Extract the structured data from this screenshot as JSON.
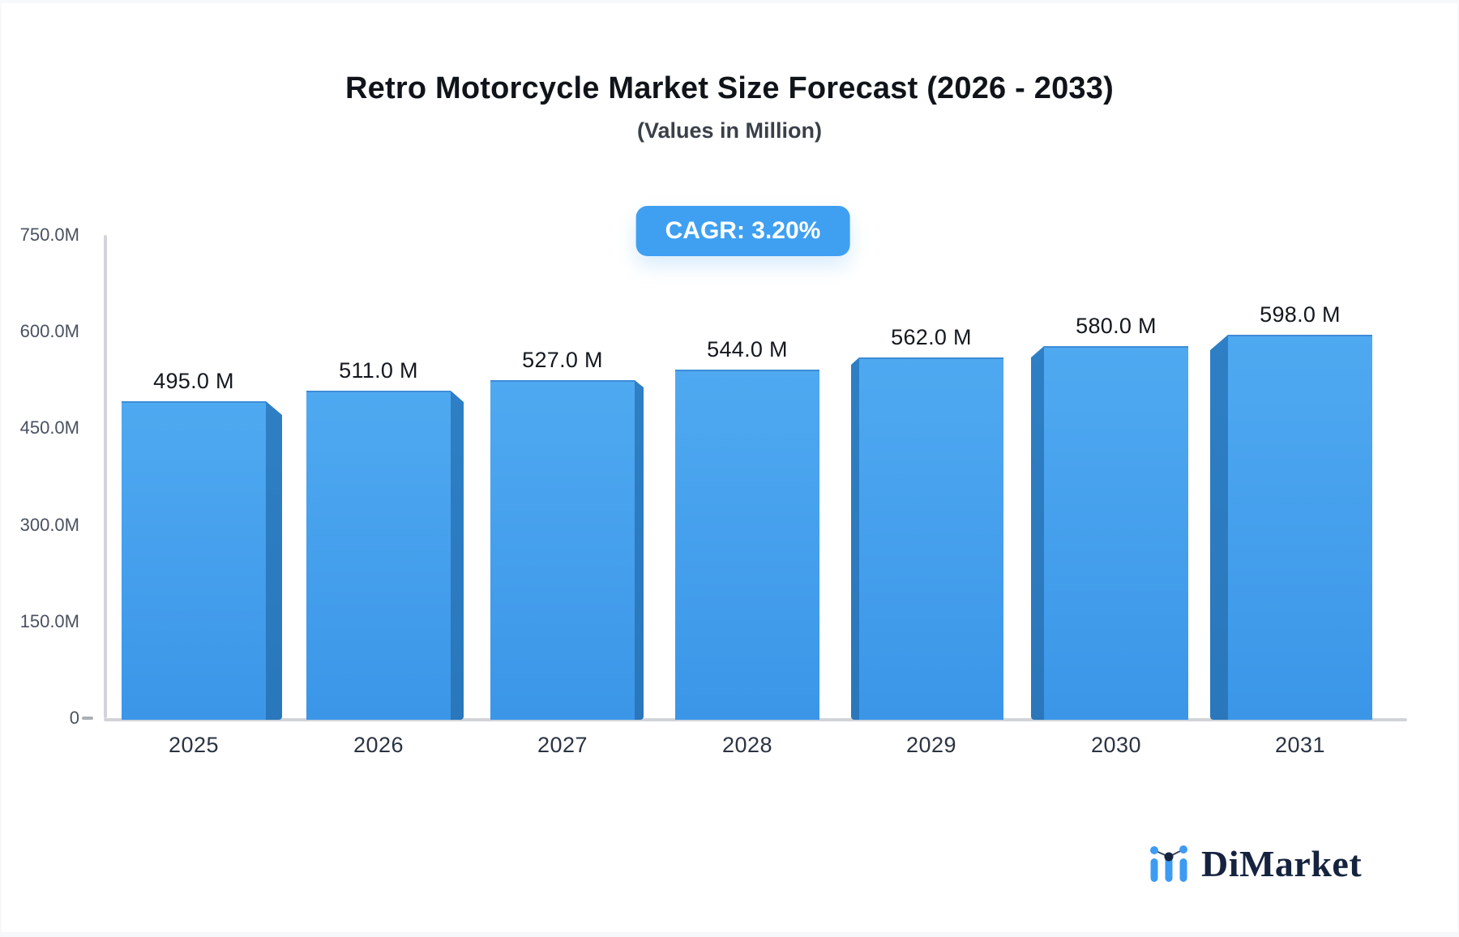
{
  "title": "Retro Motorcycle Market Size Forecast (2026 - 2033)",
  "subtitle": "(Values in Million)",
  "badge": {
    "label": "CAGR: 3.20%"
  },
  "chart_data": {
    "type": "bar",
    "title": "Retro Motorcycle Market Size Forecast (2026 - 2033)",
    "subtitle": "(Values in Million)",
    "categories": [
      "2025",
      "2026",
      "2027",
      "2028",
      "2029",
      "2030",
      "2031"
    ],
    "values": [
      495,
      511,
      527,
      544,
      562,
      580,
      598
    ],
    "value_labels": [
      "495.0 M",
      "511.0 M",
      "527.0 M",
      "544.0 M",
      "562.0 M",
      "580.0 M",
      "598.0 M"
    ],
    "unit": "Million",
    "cagr": "3.20%",
    "xlabel": "",
    "ylabel": "",
    "ylim": [
      0,
      750
    ],
    "yticks": {
      "values": [
        750,
        600,
        450,
        300,
        150,
        0
      ],
      "labels": [
        "750.0M",
        "600.0M",
        "450.0M",
        "300.0M",
        "150.0M",
        "0"
      ]
    },
    "grid": false,
    "legend": false,
    "bar_style": "3d-beveled"
  },
  "colors": {
    "bar_face_top": "#4FA9F1",
    "bar_face_bottom": "#3B96E8",
    "bar_face_edge": "#3E8CD8",
    "bar_side_top": "#2E7FC5",
    "bar_side_bottom": "#2A77BB",
    "badge_bg": "#3FA0F2",
    "badge_text": "#FFFFFF",
    "axis_line": "#D2D4D9",
    "zero_dash": "#ABAFB6",
    "logo_blue": "#3D9BF3",
    "logo_navy": "#16233F"
  },
  "logo": {
    "text": "DiMarket",
    "icon": "mini-bar-chart-icon"
  }
}
